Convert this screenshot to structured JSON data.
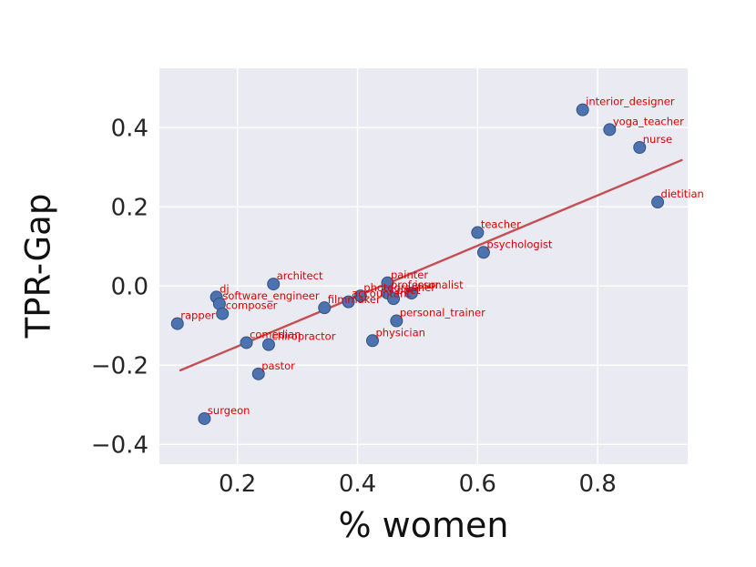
{
  "figure": {
    "background": "#ffffff",
    "plot_bg": "#eaeaf2",
    "grid_color": "#ffffff",
    "dot_color": "#4c72b0",
    "dot_edge_color": "#35537f",
    "line_color": "#c44e52",
    "label_color": "#dc0000",
    "tick_color": "#262626"
  },
  "chart_data": {
    "type": "scatter",
    "title": "",
    "xlabel": "% women",
    "ylabel": "TPR-Gap",
    "xlim": [
      0.07,
      0.95
    ],
    "ylim": [
      -0.45,
      0.55
    ],
    "grid": true,
    "legend": "none",
    "xticks": {
      "values": [
        0.2,
        0.4,
        0.6,
        0.8
      ],
      "labels": [
        "0.2",
        "0.4",
        "0.6",
        "0.8"
      ]
    },
    "yticks": {
      "values": [
        -0.4,
        -0.2,
        0.0,
        0.2,
        0.4
      ],
      "labels": [
        "−0.4",
        "−0.2",
        "0.0",
        "0.2",
        "0.4"
      ]
    },
    "regression_line": {
      "x1": 0.105,
      "y1": -0.213,
      "x2": 0.94,
      "y2": 0.318
    },
    "points": [
      {
        "label": "rapper",
        "x": 0.1,
        "y": -0.095
      },
      {
        "label": "surgeon",
        "x": 0.145,
        "y": -0.335
      },
      {
        "label": "dj",
        "x": 0.165,
        "y": -0.028
      },
      {
        "label": "software_engineer",
        "x": 0.17,
        "y": -0.045
      },
      {
        "label": "composer",
        "x": 0.175,
        "y": -0.07
      },
      {
        "label": "comedian",
        "x": 0.215,
        "y": -0.143
      },
      {
        "label": "pastor",
        "x": 0.235,
        "y": -0.222
      },
      {
        "label": "chiropractor",
        "x": 0.252,
        "y": -0.148
      },
      {
        "label": "architect",
        "x": 0.26,
        "y": 0.005
      },
      {
        "label": "filmmaker",
        "x": 0.345,
        "y": -0.055
      },
      {
        "label": "accountant",
        "x": 0.385,
        "y": -0.04
      },
      {
        "label": "photographer",
        "x": 0.405,
        "y": -0.025
      },
      {
        "label": "physician",
        "x": 0.425,
        "y": -0.138
      },
      {
        "label": "painter",
        "x": 0.45,
        "y": 0.008
      },
      {
        "label": "professor",
        "x": 0.45,
        "y": -0.018
      },
      {
        "label": "poet",
        "x": 0.46,
        "y": -0.032
      },
      {
        "label": "personal_trainer",
        "x": 0.465,
        "y": -0.088
      },
      {
        "label": "journalist",
        "x": 0.49,
        "y": -0.018
      },
      {
        "label": "teacher",
        "x": 0.6,
        "y": 0.135
      },
      {
        "label": "psychologist",
        "x": 0.61,
        "y": 0.085
      },
      {
        "label": "interior_designer",
        "x": 0.775,
        "y": 0.445
      },
      {
        "label": "yoga_teacher",
        "x": 0.82,
        "y": 0.395
      },
      {
        "label": "nurse",
        "x": 0.87,
        "y": 0.35
      },
      {
        "label": "dietitian",
        "x": 0.9,
        "y": 0.212
      }
    ]
  }
}
